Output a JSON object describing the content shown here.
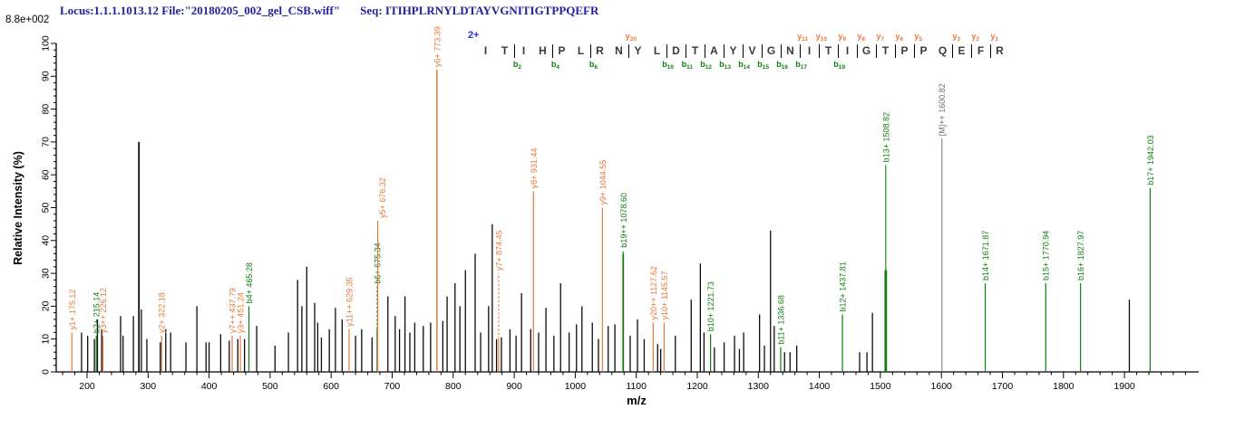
{
  "header": {
    "intensity_max": "8.8e+002",
    "locus_file": "Locus:1.1.1.1013.12 File:\"20180205_002_gel_CSB.wiff\"",
    "seq": "Seq: ITIHPLRNYLDTAYVGNITIGTPPQEFR"
  },
  "axes": {
    "x_label": "m/z",
    "y_label": "Relative  Intensity (%)"
  },
  "ladder": {
    "charge": "2+",
    "residues": [
      "I",
      "T",
      "I",
      "H",
      "P",
      "L",
      "R",
      "N",
      "Y",
      "L",
      "D",
      "T",
      "A",
      "Y",
      "V",
      "G",
      "N",
      "I",
      "T",
      "I",
      "G",
      "T",
      "P",
      "P",
      "Q",
      "E",
      "F",
      "R"
    ],
    "boundaries": [
      {
        "after": 2,
        "b": "b2"
      },
      {
        "after": 4,
        "b": "b4"
      },
      {
        "after": 6,
        "b": "b6"
      },
      {
        "after": 8,
        "y": "y20"
      },
      {
        "after": 10,
        "b": "b10"
      },
      {
        "after": 11,
        "b": "b11"
      },
      {
        "after": 12,
        "b": "b12"
      },
      {
        "after": 13,
        "b": "b13"
      },
      {
        "after": 14,
        "b": "b14"
      },
      {
        "after": 15,
        "b": "b15"
      },
      {
        "after": 16,
        "b": "b16"
      },
      {
        "after": 17,
        "b": "b17",
        "y": "y11"
      },
      {
        "after": 18,
        "y": "y10"
      },
      {
        "after": 19,
        "b": "b19",
        "y": "y9"
      },
      {
        "after": 20,
        "y": "y8"
      },
      {
        "after": 21,
        "y": "y7"
      },
      {
        "after": 22,
        "y": "y6"
      },
      {
        "after": 23,
        "y": "y5"
      },
      {
        "after": 25,
        "y": "y3"
      },
      {
        "after": 26,
        "y": "y2"
      },
      {
        "after": 27,
        "y": "y1"
      }
    ]
  },
  "colors": {
    "y_ion": "#e5793a",
    "b_ion": "#0e7e0e",
    "precursor_line": "#8c8c8c",
    "precursor_label": "#6e6e6e",
    "peak": "#0a0a0a",
    "axis": "#000000",
    "header_text": "#22229b",
    "charge": "#2233cc"
  },
  "chart_data": {
    "type": "bar",
    "subtype": "annotated_ms2_spectrum",
    "title": "Locus:1.1.1.1013.12 File:\"20180205_002_gel_CSB.wiff\" Seq: ITIHPLRNYLDTAYVGNITIGTPPQEFR",
    "xlabel": "m/z",
    "ylabel": "Relative  Intensity (%)",
    "y_full_scale_counts": "8.8e+002",
    "xlim": [
      150,
      2020
    ],
    "ylim": [
      0,
      100
    ],
    "x_tick_start": 200,
    "x_tick_end": 1900,
    "x_tick_step": 100,
    "x_minor_step": 20,
    "y_tick_step": 10,
    "y_minor_step": 2,
    "grid": false,
    "labeled_peaks": [
      {
        "ion": "y1+",
        "mz": "175.12",
        "series": "y",
        "label_pct": 12
      },
      {
        "ion": "b2+",
        "mz": "215.14",
        "series": "b",
        "label_pct": 11
      },
      {
        "ion": "y3++",
        "mz": "226.12",
        "series": "y",
        "label_pct": 11
      },
      {
        "ion": "y2+",
        "mz": "322.18",
        "series": "y",
        "label_pct": 11
      },
      {
        "ion": "y7++",
        "mz": "437.79",
        "series": "y",
        "label_pct": 11
      },
      {
        "ion": "y3+",
        "mz": "451.24",
        "series": "y",
        "label_pct": 11
      },
      {
        "ion": "b4+",
        "mz": "465.28",
        "series": "b",
        "label_pct": 20
      },
      {
        "ion": "y11++",
        "mz": "629.35",
        "series": "y",
        "label_pct": 13
      },
      {
        "ion": "b6+",
        "mz": "675.34",
        "series": "b",
        "label_pct": 26,
        "solid_pct": 13,
        "dashed": true
      },
      {
        "ion": "y5+",
        "mz": "676.32",
        "series": "y",
        "label_pct": 46,
        "label_dx": 5
      },
      {
        "ion": "y6+",
        "mz": "773.39",
        "series": "y",
        "label_pct": 92,
        "width": 1.5
      },
      {
        "ion": "y7+",
        "mz": "874.45",
        "series": "y",
        "label_pct": 30,
        "solid_pct": 10,
        "dashed": true
      },
      {
        "ion": "y8+",
        "mz": "931.44",
        "series": "y",
        "label_pct": 55
      },
      {
        "ion": "y9+",
        "mz": "1044.55",
        "series": "y",
        "label_pct": 50
      },
      {
        "ion": "b19++",
        "mz": "1078.60",
        "series": "b",
        "label_pct": 37,
        "solid_pct": 36,
        "dashed": true,
        "width": 1.8
      },
      {
        "ion": "y20++",
        "mz": "1127.62",
        "series": "y",
        "label_pct": 15
      },
      {
        "ion": "y10+",
        "mz": "1145.57",
        "series": "y",
        "label_pct": 15
      },
      {
        "ion": "b10+",
        "mz": "1221.73",
        "series": "b",
        "label_pct": 11.5
      },
      {
        "ion": "b11+",
        "mz": "1336.68",
        "series": "b",
        "label_pct": 7.5
      },
      {
        "ion": "b12+",
        "mz": "1437.81",
        "series": "b",
        "label_pct": 17.5
      },
      {
        "ion": "b13+",
        "mz": "1508.82",
        "series": "b",
        "label_pct": 63,
        "solid_pct": 31,
        "thick": true
      },
      {
        "ion": "[M]++",
        "mz": "1600.82",
        "series": "M",
        "label_pct": 71
      },
      {
        "ion": "b14+",
        "mz": "1671.87",
        "series": "b",
        "label_pct": 27
      },
      {
        "ion": "b15+",
        "mz": "1770.94",
        "series": "b",
        "label_pct": 27
      },
      {
        "ion": "b16+",
        "mz": "1827.97",
        "series": "b",
        "label_pct": 27
      },
      {
        "ion": "b17+",
        "mz": "1942.03",
        "series": "b",
        "label_pct": 56
      }
    ],
    "peaks": [
      [
        191,
        12
      ],
      [
        201,
        11
      ],
      [
        212,
        10
      ],
      [
        217,
        16
      ],
      [
        224,
        13
      ],
      [
        255,
        17
      ],
      [
        259,
        11
      ],
      [
        276,
        17
      ],
      [
        285,
        70
      ],
      [
        289,
        19
      ],
      [
        298,
        10
      ],
      [
        320,
        9
      ],
      [
        329,
        13
      ],
      [
        337,
        12
      ],
      [
        362,
        9
      ],
      [
        380,
        20
      ],
      [
        395,
        9
      ],
      [
        400,
        9
      ],
      [
        419,
        11.5
      ],
      [
        433,
        9.5
      ],
      [
        447,
        10
      ],
      [
        458,
        10
      ],
      [
        478,
        14
      ],
      [
        508,
        8
      ],
      [
        530,
        12
      ],
      [
        545,
        28
      ],
      [
        552,
        20
      ],
      [
        560,
        32
      ],
      [
        573,
        21
      ],
      [
        578,
        15
      ],
      [
        584,
        10.5
      ],
      [
        597,
        13
      ],
      [
        607,
        19.5
      ],
      [
        618,
        16
      ],
      [
        640,
        11
      ],
      [
        650,
        13
      ],
      [
        667,
        10.5
      ],
      [
        693,
        23
      ],
      [
        705,
        17
      ],
      [
        712,
        13
      ],
      [
        721,
        23
      ],
      [
        729,
        12
      ],
      [
        737,
        15
      ],
      [
        751,
        14
      ],
      [
        763,
        15
      ],
      [
        783,
        15.5
      ],
      [
        790,
        23
      ],
      [
        803,
        27
      ],
      [
        811,
        20
      ],
      [
        820,
        31
      ],
      [
        836,
        36
      ],
      [
        845,
        12
      ],
      [
        858,
        20
      ],
      [
        864,
        45
      ],
      [
        871,
        10
      ],
      [
        879,
        10.5
      ],
      [
        893,
        13
      ],
      [
        903,
        11
      ],
      [
        912,
        24
      ],
      [
        927,
        13
      ],
      [
        940,
        12
      ],
      [
        952,
        19.5
      ],
      [
        965,
        11
      ],
      [
        976,
        27
      ],
      [
        990,
        12
      ],
      [
        1002,
        14.5
      ],
      [
        1011,
        20
      ],
      [
        1028,
        15
      ],
      [
        1038,
        10
      ],
      [
        1054,
        14
      ],
      [
        1065,
        14.5
      ],
      [
        1090,
        11
      ],
      [
        1102,
        16
      ],
      [
        1113,
        10
      ],
      [
        1135,
        8.5
      ],
      [
        1140,
        7
      ],
      [
        1164,
        11
      ],
      [
        1190,
        22
      ],
      [
        1205,
        33
      ],
      [
        1211,
        12
      ],
      [
        1228,
        7.5
      ],
      [
        1244,
        9
      ],
      [
        1261,
        11
      ],
      [
        1269,
        7
      ],
      [
        1276,
        12
      ],
      [
        1302,
        17.5
      ],
      [
        1310,
        8
      ],
      [
        1320,
        43
      ],
      [
        1326,
        14
      ],
      [
        1343,
        6
      ],
      [
        1352,
        6
      ],
      [
        1363,
        8
      ],
      [
        1466,
        6
      ],
      [
        1478,
        6
      ],
      [
        1487,
        18
      ],
      [
        1509,
        31
      ],
      [
        1908,
        22
      ]
    ]
  }
}
